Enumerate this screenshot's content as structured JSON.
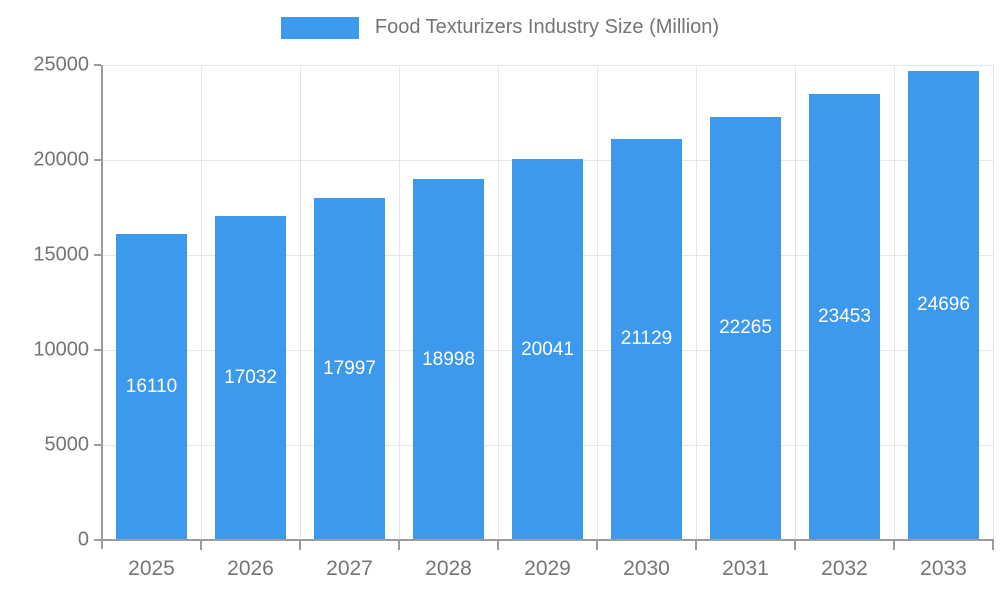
{
  "legend": {
    "label": "Food Texturizers Industry Size (Million)"
  },
  "chart_data": {
    "type": "bar",
    "title": "Food Texturizers Industry Size (Million)",
    "categories": [
      "2025",
      "2026",
      "2027",
      "2028",
      "2029",
      "2030",
      "2031",
      "2032",
      "2033"
    ],
    "values": [
      16110,
      17032,
      17997,
      18998,
      20041,
      21129,
      22265,
      23453,
      24696
    ],
    "xlabel": "",
    "ylabel": "",
    "ylim": [
      0,
      25000
    ],
    "yticks": [
      0,
      5000,
      10000,
      15000,
      20000,
      25000
    ],
    "grid": true,
    "legend_position": "top-center",
    "bar_labels_inside": true,
    "colors": {
      "bar": "#3C99EE",
      "bar_label": "#FFFFFF",
      "axis": "#9B9B9B",
      "gridline": "#E6E6E6",
      "tick_text": "#757575",
      "background": "#FFFFFF"
    }
  }
}
